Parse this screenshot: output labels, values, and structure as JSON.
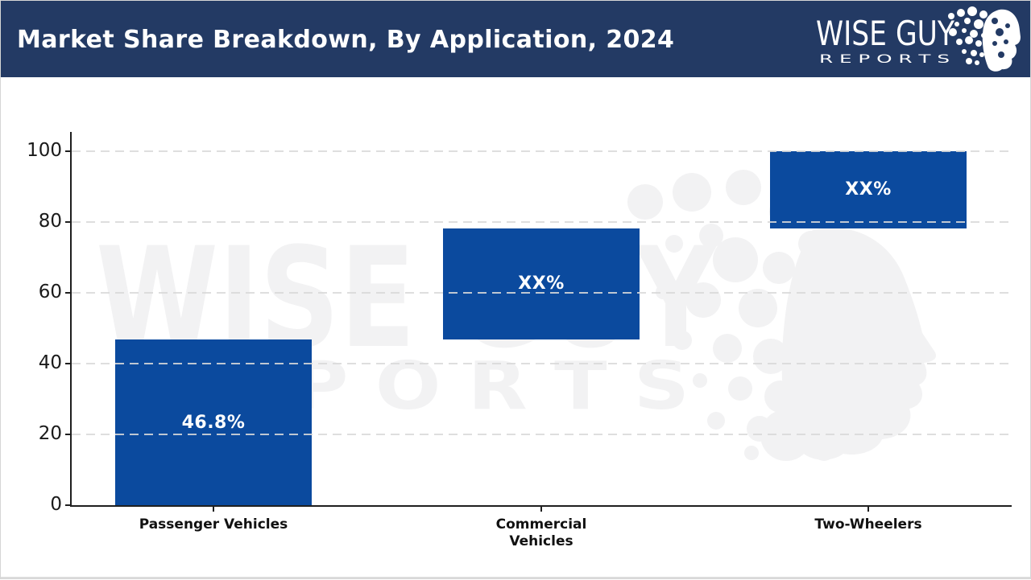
{
  "header": {
    "title": "Market Share Breakdown, By Application, 2024",
    "logo": {
      "brand_line1": "WISE GUY",
      "brand_line2": "R E P O R T S"
    }
  },
  "watermark": {
    "line1": "WISE GUY",
    "line2": "R E P O R T S"
  },
  "chart_data": {
    "type": "bar",
    "subtype": "stacked-waterfall-percent",
    "title": "Market Share Breakdown, By Application, 2024",
    "categories": [
      "Passenger Vehicles",
      "Commercial\nVehicles",
      "Two-Wheelers"
    ],
    "bars": [
      {
        "category": "Passenger Vehicles",
        "label": "46.8%",
        "start": 0,
        "end": 46.8
      },
      {
        "category": "Commercial Vehicles",
        "label": "XX%",
        "start": 46.8,
        "end": 78.2
      },
      {
        "category": "Two-Wheelers",
        "label": "XX%",
        "start": 78.2,
        "end": 100
      }
    ],
    "ylabel": "",
    "xlabel": "",
    "ylim": [
      0,
      105
    ],
    "yticks": [
      0,
      20,
      40,
      60,
      80,
      100
    ],
    "grid": {
      "axis": "y",
      "style": "dashed",
      "on": true
    },
    "legend": null,
    "colors": {
      "bar": "#0b4a9e",
      "header_bg": "#233a64",
      "axis": "#1f1f1f",
      "grid": "#d9d9d9",
      "bar_label": "#ffffff",
      "tick_label": "#1a1a1a",
      "watermark": "#f2f2f3"
    }
  }
}
